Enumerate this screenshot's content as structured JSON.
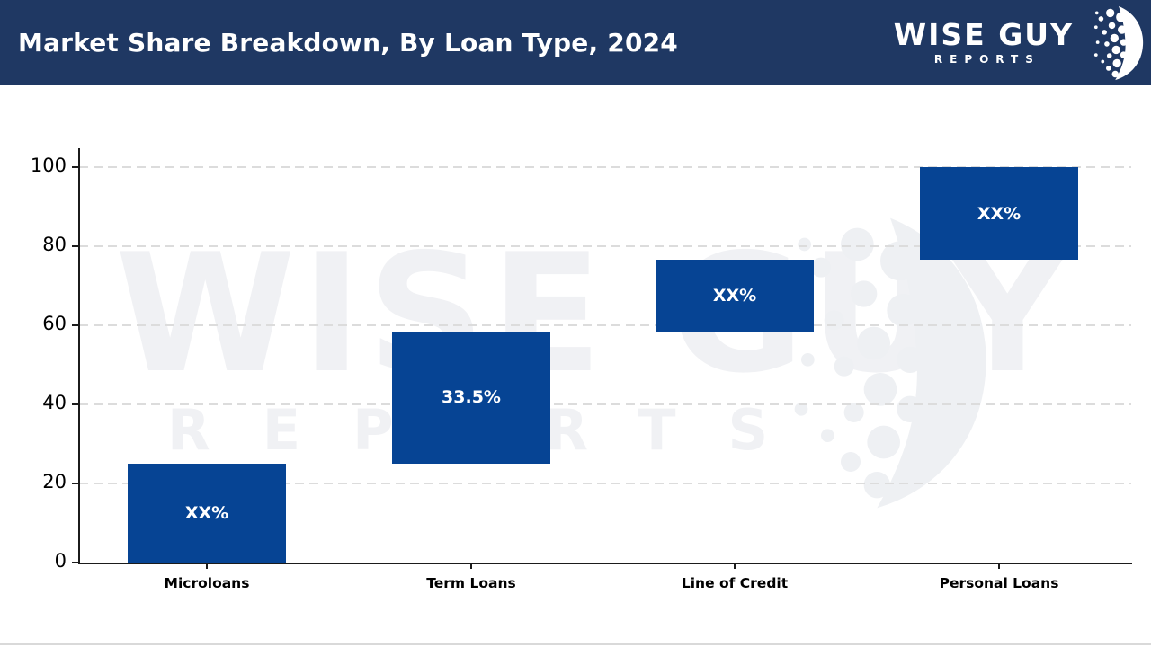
{
  "header": {
    "title": "Market Share Breakdown, By Loan Type, 2024",
    "background_color": "#1f3863",
    "logo": {
      "line1": "WISE GUY",
      "line2": "REPORTS"
    }
  },
  "watermark": {
    "line1": "WISE GUY",
    "line2": "REPORTS"
  },
  "chart_data": {
    "type": "bar",
    "subtype": "waterfall",
    "title": "Market Share Breakdown, By Loan Type, 2024",
    "xlabel": "",
    "ylabel": "",
    "ylim": [
      0,
      100
    ],
    "yticks": [
      0,
      20,
      40,
      60,
      80,
      100
    ],
    "grid": "horizontal-dashed",
    "legend": "none",
    "bar_color": "#064494",
    "value_label_color": "#ffffff",
    "categories": [
      "Microloans",
      "Term Loans",
      "Line of Credit",
      "Personal Loans"
    ],
    "values": [
      25,
      33.5,
      18,
      23.5
    ],
    "bars": [
      {
        "category": "Microloans",
        "start": 0,
        "end": 25,
        "value_label": "XX%"
      },
      {
        "category": "Term Loans",
        "start": 25,
        "end": 58.5,
        "value_label": "33.5%"
      },
      {
        "category": "Line of Credit",
        "start": 58.5,
        "end": 76.5,
        "value_label": "XX%"
      },
      {
        "category": "Personal Loans",
        "start": 76.5,
        "end": 100,
        "value_label": "XX%"
      }
    ]
  },
  "footer": {
    "line_color": "#d9d9d9"
  }
}
